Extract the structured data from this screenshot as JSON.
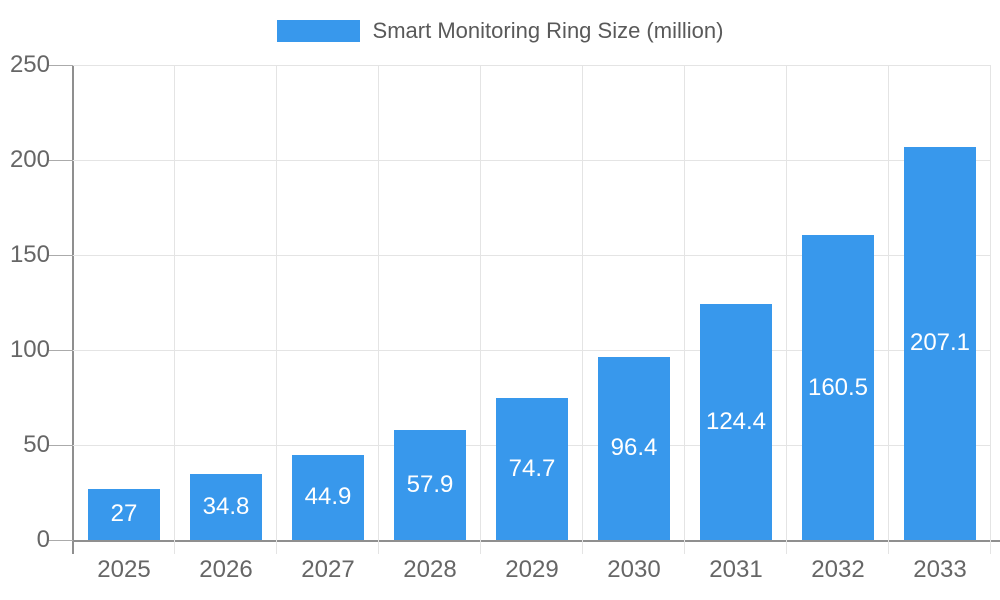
{
  "chart_data": {
    "type": "bar",
    "title": "Smart Monitoring Ring Size (million)",
    "series_name": "Smart Monitoring Ring Size (million)",
    "categories": [
      "2025",
      "2026",
      "2027",
      "2028",
      "2029",
      "2030",
      "2031",
      "2032",
      "2033"
    ],
    "values": [
      27,
      34.8,
      44.9,
      57.9,
      74.7,
      96.4,
      124.4,
      160.5,
      207.1
    ],
    "value_labels": [
      "27",
      "34.8",
      "44.9",
      "57.9",
      "74.7",
      "96.4",
      "124.4",
      "160.5",
      "207.1"
    ],
    "xlabel": "",
    "ylabel": "",
    "ylim": [
      0,
      250
    ],
    "yticks": [
      0,
      50,
      100,
      150,
      200,
      250
    ],
    "grid": true,
    "legend_position": "top-center",
    "value_labels_inside_bars": true,
    "colors": {
      "bar": "#3898EC",
      "gridline": "#E4E4E4",
      "axis_line": "#8F8F8F",
      "tick_label": "#666666",
      "legend_text": "#595959",
      "value_label": "#FFFFFF",
      "background": "#FFFFFF"
    }
  }
}
